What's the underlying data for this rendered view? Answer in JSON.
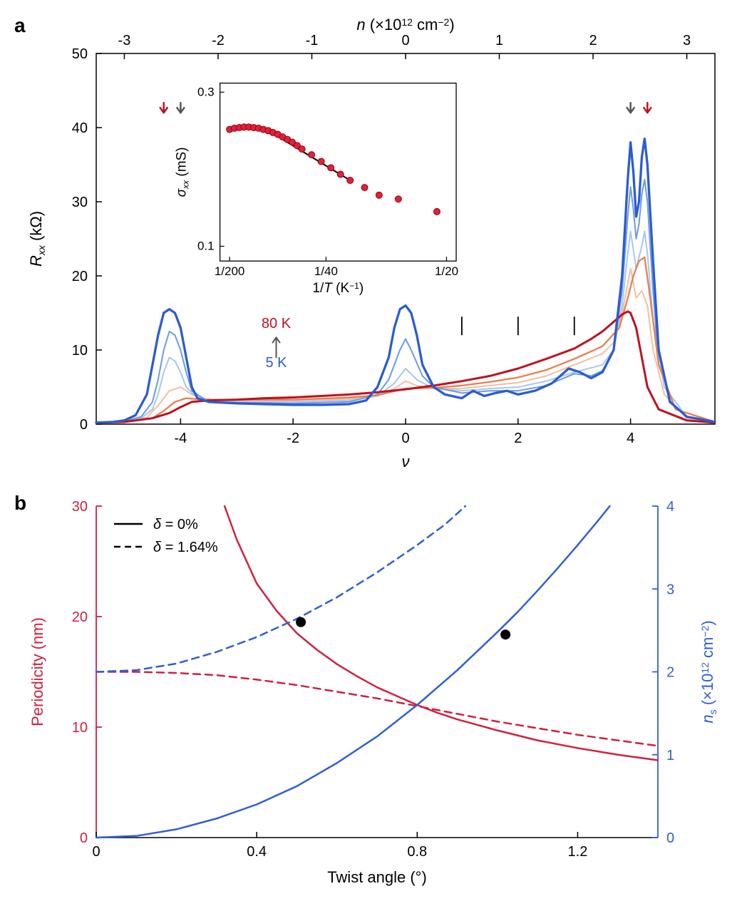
{
  "panelA": {
    "label": "a",
    "type": "line",
    "x_bottom": {
      "label": "ν",
      "ticks": [
        -4,
        -2,
        0,
        2,
        4
      ],
      "lim": [
        -5.5,
        5.5
      ]
    },
    "x_top": {
      "label": "n (×10¹² cm⁻²)",
      "ticks": [
        -3,
        -2,
        -1,
        0,
        1,
        2,
        3
      ]
    },
    "y_left": {
      "label": "Rₓₓ (kΩ)",
      "ticks": [
        0,
        10,
        20,
        30,
        40,
        50
      ],
      "lim": [
        0,
        50
      ]
    },
    "temp_colors": [
      "#2b5cd0",
      "#6a9be8",
      "#a8c6f0",
      "#d7d7d7",
      "#f0c0a0",
      "#e88050",
      "#c01020"
    ],
    "temp_low_label": "5 K",
    "temp_high_label": "80 K",
    "arrow_up_color": "#555555",
    "arrows_top": [
      {
        "x": 4.0,
        "color": "#555555"
      },
      {
        "x": 4.3,
        "color": "#c01020"
      },
      {
        "x": -4.3,
        "color": "#c01020"
      },
      {
        "x": -4.0,
        "color": "#555555"
      }
    ],
    "markers": [
      1,
      2,
      3
    ],
    "series_5K": [
      [
        -5.5,
        0.2
      ],
      [
        -5.2,
        0.3
      ],
      [
        -5.0,
        0.5
      ],
      [
        -4.8,
        1.2
      ],
      [
        -4.6,
        4
      ],
      [
        -4.5,
        8
      ],
      [
        -4.4,
        12
      ],
      [
        -4.3,
        15
      ],
      [
        -4.2,
        15.5
      ],
      [
        -4.1,
        15
      ],
      [
        -4.0,
        13
      ],
      [
        -3.9,
        9
      ],
      [
        -3.8,
        5
      ],
      [
        -3.7,
        3.5
      ],
      [
        -3.5,
        3
      ],
      [
        -3.0,
        2.8
      ],
      [
        -2.5,
        2.7
      ],
      [
        -2.0,
        2.6
      ],
      [
        -1.5,
        2.6
      ],
      [
        -1.0,
        2.7
      ],
      [
        -0.7,
        3.2
      ],
      [
        -0.5,
        5
      ],
      [
        -0.3,
        9
      ],
      [
        -0.2,
        13
      ],
      [
        -0.1,
        15.5
      ],
      [
        0,
        16
      ],
      [
        0.1,
        15
      ],
      [
        0.2,
        12
      ],
      [
        0.3,
        8
      ],
      [
        0.5,
        5
      ],
      [
        0.7,
        4
      ],
      [
        1.0,
        3.5
      ],
      [
        1.2,
        4.5
      ],
      [
        1.4,
        3.8
      ],
      [
        1.6,
        4.2
      ],
      [
        1.8,
        4.5
      ],
      [
        2.0,
        4.0
      ],
      [
        2.3,
        4.5
      ],
      [
        2.6,
        5.5
      ],
      [
        2.9,
        7.5
      ],
      [
        3.1,
        7
      ],
      [
        3.3,
        6.2
      ],
      [
        3.5,
        7
      ],
      [
        3.7,
        10
      ],
      [
        3.85,
        20
      ],
      [
        3.95,
        33
      ],
      [
        4.0,
        38
      ],
      [
        4.05,
        34
      ],
      [
        4.1,
        28
      ],
      [
        4.15,
        30
      ],
      [
        4.2,
        36
      ],
      [
        4.25,
        38.5
      ],
      [
        4.3,
        35
      ],
      [
        4.4,
        22
      ],
      [
        4.5,
        10
      ],
      [
        4.7,
        3
      ],
      [
        5.0,
        1
      ],
      [
        5.5,
        0.3
      ]
    ],
    "series_80K": [
      [
        -5.5,
        0.2
      ],
      [
        -5.0,
        0.3
      ],
      [
        -4.5,
        0.8
      ],
      [
        -4.2,
        1.5
      ],
      [
        -4.0,
        2.3
      ],
      [
        -3.8,
        3.0
      ],
      [
        -3.5,
        3.2
      ],
      [
        -3.0,
        3.3
      ],
      [
        -2.5,
        3.5
      ],
      [
        -2.0,
        3.6
      ],
      [
        -1.5,
        3.8
      ],
      [
        -1.0,
        4.0
      ],
      [
        -0.5,
        4.3
      ],
      [
        0,
        4.7
      ],
      [
        0.5,
        5.2
      ],
      [
        1.0,
        5.8
      ],
      [
        1.5,
        6.5
      ],
      [
        2.0,
        7.5
      ],
      [
        2.5,
        8.8
      ],
      [
        3.0,
        10.2
      ],
      [
        3.3,
        11.5
      ],
      [
        3.5,
        12.5
      ],
      [
        3.7,
        13.8
      ],
      [
        3.85,
        14.8
      ],
      [
        3.95,
        15.2
      ],
      [
        4.0,
        15
      ],
      [
        4.1,
        13
      ],
      [
        4.2,
        9
      ],
      [
        4.3,
        5
      ],
      [
        4.5,
        2
      ],
      [
        5.0,
        0.5
      ],
      [
        5.5,
        0.2
      ]
    ],
    "series_mid1": [
      [
        -5.5,
        0.2
      ],
      [
        -5.0,
        0.4
      ],
      [
        -4.7,
        1.0
      ],
      [
        -4.5,
        3
      ],
      [
        -4.4,
        6
      ],
      [
        -4.3,
        10
      ],
      [
        -4.2,
        12.5
      ],
      [
        -4.1,
        12
      ],
      [
        -4.0,
        10
      ],
      [
        -3.9,
        7
      ],
      [
        -3.8,
        4.5
      ],
      [
        -3.5,
        3.0
      ],
      [
        -3.0,
        2.9
      ],
      [
        -2.0,
        2.8
      ],
      [
        -1.0,
        3.0
      ],
      [
        -0.5,
        4.0
      ],
      [
        -0.3,
        6
      ],
      [
        -0.1,
        10
      ],
      [
        0,
        11.5
      ],
      [
        0.1,
        10
      ],
      [
        0.3,
        6.5
      ],
      [
        0.5,
        5
      ],
      [
        1.0,
        4.2
      ],
      [
        1.5,
        4.5
      ],
      [
        2.0,
        4.5
      ],
      [
        2.5,
        5.2
      ],
      [
        3.0,
        6.8
      ],
      [
        3.3,
        6.5
      ],
      [
        3.5,
        7.2
      ],
      [
        3.7,
        10
      ],
      [
        3.85,
        18
      ],
      [
        3.95,
        28
      ],
      [
        4.0,
        32
      ],
      [
        4.05,
        29
      ],
      [
        4.1,
        25
      ],
      [
        4.15,
        27
      ],
      [
        4.2,
        31
      ],
      [
        4.25,
        33
      ],
      [
        4.3,
        30
      ],
      [
        4.4,
        18
      ],
      [
        4.5,
        8
      ],
      [
        4.8,
        2
      ],
      [
        5.5,
        0.3
      ]
    ],
    "series_mid2": [
      [
        -5.5,
        0.2
      ],
      [
        -5.0,
        0.35
      ],
      [
        -4.7,
        0.8
      ],
      [
        -4.5,
        2
      ],
      [
        -4.4,
        4
      ],
      [
        -4.3,
        7
      ],
      [
        -4.2,
        9
      ],
      [
        -4.1,
        8.5
      ],
      [
        -4.0,
        7
      ],
      [
        -3.9,
        5
      ],
      [
        -3.7,
        3.5
      ],
      [
        -3.0,
        3.0
      ],
      [
        -2.0,
        3.0
      ],
      [
        -1.0,
        3.2
      ],
      [
        -0.5,
        3.8
      ],
      [
        -0.2,
        5.5
      ],
      [
        0,
        7.5
      ],
      [
        0.2,
        6
      ],
      [
        0.5,
        4.8
      ],
      [
        1.0,
        4.5
      ],
      [
        1.5,
        4.8
      ],
      [
        2.0,
        5.0
      ],
      [
        2.5,
        5.8
      ],
      [
        3.0,
        7.0
      ],
      [
        3.5,
        8.0
      ],
      [
        3.7,
        10
      ],
      [
        3.85,
        16
      ],
      [
        3.95,
        23
      ],
      [
        4.0,
        26
      ],
      [
        4.1,
        21
      ],
      [
        4.2,
        24
      ],
      [
        4.25,
        26
      ],
      [
        4.3,
        23
      ],
      [
        4.4,
        14
      ],
      [
        4.6,
        5
      ],
      [
        5.0,
        1
      ],
      [
        5.5,
        0.3
      ]
    ],
    "series_mid3": [
      [
        -5.5,
        0.2
      ],
      [
        -5.0,
        0.3
      ],
      [
        -4.6,
        0.9
      ],
      [
        -4.4,
        2.5
      ],
      [
        -4.2,
        4.5
      ],
      [
        -4.0,
        5
      ],
      [
        -3.8,
        4
      ],
      [
        -3.5,
        3.3
      ],
      [
        -3.0,
        3.2
      ],
      [
        -2.0,
        3.2
      ],
      [
        -1.0,
        3.4
      ],
      [
        -0.5,
        3.8
      ],
      [
        -0.2,
        4.8
      ],
      [
        0,
        5.8
      ],
      [
        0.2,
        5.2
      ],
      [
        0.5,
        4.8
      ],
      [
        1.0,
        4.8
      ],
      [
        1.5,
        5.2
      ],
      [
        2.0,
        5.6
      ],
      [
        2.5,
        6.5
      ],
      [
        3.0,
        8.0
      ],
      [
        3.5,
        9.5
      ],
      [
        3.7,
        11
      ],
      [
        3.85,
        15
      ],
      [
        3.95,
        19
      ],
      [
        4.0,
        21
      ],
      [
        4.1,
        17
      ],
      [
        4.2,
        18
      ],
      [
        4.3,
        16
      ],
      [
        4.4,
        10
      ],
      [
        4.6,
        4
      ],
      [
        5.0,
        0.8
      ],
      [
        5.5,
        0.3
      ]
    ],
    "series_mid4": [
      [
        -5.5,
        0.2
      ],
      [
        -5.0,
        0.3
      ],
      [
        -4.5,
        0.8
      ],
      [
        -4.3,
        1.8
      ],
      [
        -4.1,
        3.0
      ],
      [
        -3.9,
        3.5
      ],
      [
        -3.6,
        3.3
      ],
      [
        -3.0,
        3.3
      ],
      [
        -2.0,
        3.3
      ],
      [
        -1.0,
        3.6
      ],
      [
        -0.5,
        3.9
      ],
      [
        0,
        4.8
      ],
      [
        0.5,
        4.9
      ],
      [
        1.0,
        5.2
      ],
      [
        1.5,
        5.7
      ],
      [
        2.0,
        6.3
      ],
      [
        2.5,
        7.3
      ],
      [
        3.0,
        8.8
      ],
      [
        3.5,
        10.5
      ],
      [
        3.8,
        13
      ],
      [
        3.95,
        17
      ],
      [
        4.05,
        20
      ],
      [
        4.15,
        22
      ],
      [
        4.25,
        22.5
      ],
      [
        4.35,
        17
      ],
      [
        4.5,
        8
      ],
      [
        4.8,
        2
      ],
      [
        5.5,
        0.3
      ]
    ],
    "inset": {
      "x": {
        "label": "1/T (K⁻¹)",
        "ticks": [
          "1/200",
          "1/40",
          "1/20"
        ],
        "tick_vals": [
          0.005,
          0.025,
          0.05
        ],
        "lim": [
          0.003,
          0.052
        ]
      },
      "y": {
        "label": "σₓₓ (mS)",
        "ticks": [
          0.1,
          0.3
        ],
        "lim": [
          0.09,
          0.32
        ],
        "scale": "log"
      },
      "point_color": "#e02040",
      "line_color": "#000000",
      "points": [
        [
          0.005,
          0.23
        ],
        [
          0.006,
          0.232
        ],
        [
          0.007,
          0.233
        ],
        [
          0.008,
          0.234
        ],
        [
          0.009,
          0.234
        ],
        [
          0.01,
          0.233
        ],
        [
          0.011,
          0.232
        ],
        [
          0.012,
          0.23
        ],
        [
          0.013,
          0.228
        ],
        [
          0.014,
          0.225
        ],
        [
          0.015,
          0.222
        ],
        [
          0.016,
          0.218
        ],
        [
          0.017,
          0.214
        ],
        [
          0.018,
          0.21
        ],
        [
          0.019,
          0.205
        ],
        [
          0.02,
          0.2
        ],
        [
          0.022,
          0.192
        ],
        [
          0.024,
          0.183
        ],
        [
          0.026,
          0.175
        ],
        [
          0.028,
          0.167
        ],
        [
          0.03,
          0.16
        ],
        [
          0.033,
          0.152
        ],
        [
          0.036,
          0.144
        ],
        [
          0.04,
          0.14
        ],
        [
          0.048,
          0.128
        ]
      ],
      "fit_line": [
        [
          0.013,
          0.228
        ],
        [
          0.03,
          0.16
        ]
      ]
    }
  },
  "panelB": {
    "label": "b",
    "type": "line",
    "x": {
      "label": "Twist angle (°)",
      "ticks": [
        0,
        0.4,
        0.8,
        1.2
      ],
      "lim": [
        0,
        1.4
      ]
    },
    "y_left": {
      "label": "Periodicity (nm)",
      "ticks": [
        0,
        10,
        20,
        30
      ],
      "lim": [
        0,
        30
      ],
      "color": "#d02040"
    },
    "y_right": {
      "label": "nₛ (×10¹² cm⁻²)",
      "ticks": [
        0,
        1,
        2,
        3,
        4
      ],
      "lim": [
        0,
        4
      ],
      "color": "#3060d0"
    },
    "legend": [
      {
        "text": "δ = 0%",
        "style": "solid"
      },
      {
        "text": "δ = 1.64%",
        "style": "dashed"
      }
    ],
    "red_solid": [
      [
        0.32,
        30
      ],
      [
        0.35,
        27
      ],
      [
        0.4,
        23
      ],
      [
        0.45,
        20.5
      ],
      [
        0.5,
        18.5
      ],
      [
        0.55,
        17
      ],
      [
        0.6,
        15.7
      ],
      [
        0.65,
        14.6
      ],
      [
        0.7,
        13.6
      ],
      [
        0.75,
        12.8
      ],
      [
        0.8,
        12.0
      ],
      [
        0.85,
        11.3
      ],
      [
        0.9,
        10.7
      ],
      [
        0.95,
        10.2
      ],
      [
        1.0,
        9.7
      ],
      [
        1.1,
        8.8
      ],
      [
        1.2,
        8.1
      ],
      [
        1.3,
        7.5
      ],
      [
        1.4,
        7.0
      ]
    ],
    "red_dashed": [
      [
        0,
        15
      ],
      [
        0.1,
        15
      ],
      [
        0.2,
        14.9
      ],
      [
        0.3,
        14.7
      ],
      [
        0.4,
        14.3
      ],
      [
        0.5,
        13.8
      ],
      [
        0.6,
        13.2
      ],
      [
        0.7,
        12.6
      ],
      [
        0.8,
        11.9
      ],
      [
        0.9,
        11.2
      ],
      [
        1.0,
        10.5
      ],
      [
        1.1,
        9.9
      ],
      [
        1.2,
        9.3
      ],
      [
        1.3,
        8.8
      ],
      [
        1.4,
        8.3
      ]
    ],
    "blue_solid": [
      [
        0,
        0
      ],
      [
        0.1,
        0.02
      ],
      [
        0.2,
        0.1
      ],
      [
        0.3,
        0.23
      ],
      [
        0.4,
        0.4
      ],
      [
        0.5,
        0.62
      ],
      [
        0.6,
        0.9
      ],
      [
        0.7,
        1.22
      ],
      [
        0.8,
        1.6
      ],
      [
        0.9,
        2.02
      ],
      [
        1.0,
        2.48
      ],
      [
        1.05,
        2.72
      ],
      [
        1.1,
        2.98
      ],
      [
        1.15,
        3.25
      ],
      [
        1.2,
        3.53
      ],
      [
        1.25,
        3.82
      ],
      [
        1.28,
        4.0
      ]
    ],
    "blue_dashed": [
      [
        0,
        2.0
      ],
      [
        0.1,
        2.02
      ],
      [
        0.2,
        2.1
      ],
      [
        0.3,
        2.24
      ],
      [
        0.4,
        2.42
      ],
      [
        0.5,
        2.64
      ],
      [
        0.6,
        2.9
      ],
      [
        0.7,
        3.2
      ],
      [
        0.8,
        3.53
      ],
      [
        0.87,
        3.78
      ],
      [
        0.92,
        4.0
      ]
    ],
    "black_points": [
      [
        0.51,
        2.6,
        "right"
      ],
      [
        1.02,
        2.45,
        "right"
      ]
    ],
    "point_color": "#000000"
  },
  "colors": {
    "axis": "#000000",
    "background": "#ffffff"
  },
  "fonts": {
    "axis_label": 22,
    "tick": 20,
    "panel_label": 28,
    "legend": 20,
    "temp": 20
  }
}
